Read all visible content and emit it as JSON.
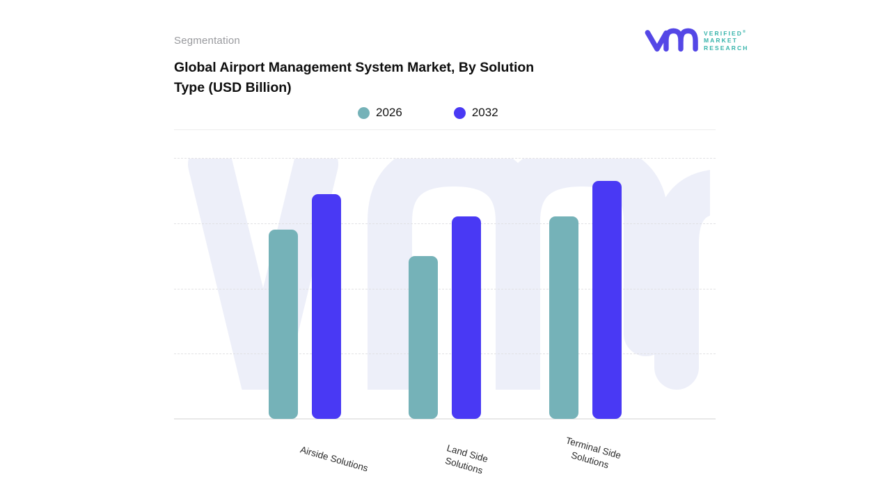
{
  "header": {
    "eyebrow": "Segmentation",
    "title_line1": "Global Airport Management System Market, By Solution",
    "title_line2": "Type (USD Billion)"
  },
  "brand": {
    "wordmark_lines": [
      "VERIFIED",
      "MARKET",
      "RESEARCH"
    ],
    "registered_mark": "®",
    "monogram_icon": "vmr-monogram",
    "monogram_color": "#5447E6",
    "wordmark_color": "#35B3AA"
  },
  "watermark": {
    "icon": "vmr-monogram-watermark",
    "color": "#EDEFF9"
  },
  "chart_data": {
    "type": "bar",
    "title": "Global Airport Management System Market, By Solution Type (USD Billion)",
    "xlabel": "",
    "ylabel": "USD Billion",
    "categories": [
      "Airside Solutions",
      "Land Side Solutions",
      "Terminal Side Solutions"
    ],
    "category_label_lines": [
      [
        "Airside Solutions"
      ],
      [
        "Land Side",
        "Solutions"
      ],
      [
        "Terminal Side",
        "Solutions"
      ]
    ],
    "series": [
      {
        "name": "2026",
        "color": "#75B2B8",
        "values": [
          2.9,
          2.5,
          3.1
        ]
      },
      {
        "name": "2032",
        "color": "#4939F4",
        "values": [
          3.45,
          3.1,
          3.65
        ]
      }
    ],
    "ylim": [
      0,
      4.3
    ],
    "gridline_values": [
      1,
      2,
      3,
      4
    ],
    "y_tick_labels_shown": false,
    "grid": "horizontal dashed",
    "legend_position": "top-center",
    "values_note": "y-axis unlabeled; values estimated in gridline units"
  }
}
